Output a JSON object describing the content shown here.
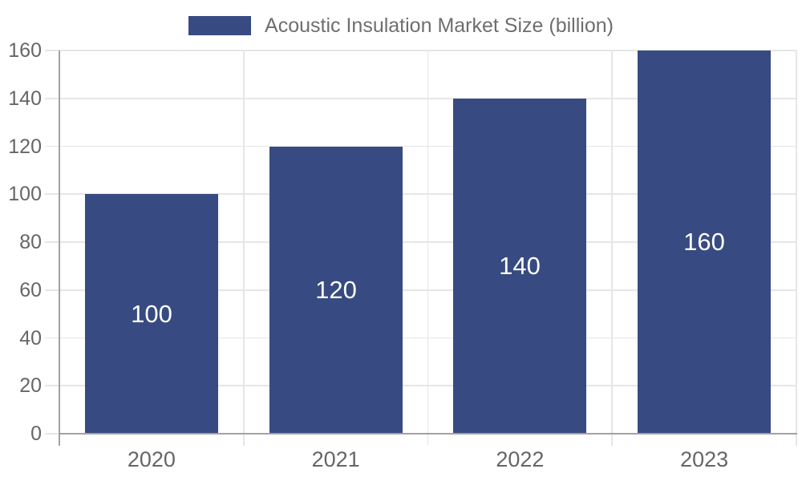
{
  "chart_data": {
    "type": "bar",
    "title": "Acoustic Insulation Market Size (billion)",
    "legend": {
      "label": "Acoustic Insulation Market Size (billion)",
      "position": "top"
    },
    "categories": [
      "2020",
      "2021",
      "2022",
      "2023"
    ],
    "values": [
      100,
      120,
      140,
      160
    ],
    "xlabel": "",
    "ylabel": "",
    "ylim": [
      0,
      160
    ],
    "ytick_step": 20,
    "ytick_labels": [
      "0",
      "20",
      "40",
      "60",
      "80",
      "100",
      "120",
      "140",
      "160"
    ],
    "grid": true,
    "bar_value_labels_visible": true,
    "colors": {
      "bar": "#374a81",
      "bar_label": "#ffffff",
      "axis_line": "#a2a2a2",
      "gridline": "#e6e6e6",
      "tick_label": "#666666",
      "legend_text": "#6e6e6e",
      "background": "#ffffff"
    }
  }
}
